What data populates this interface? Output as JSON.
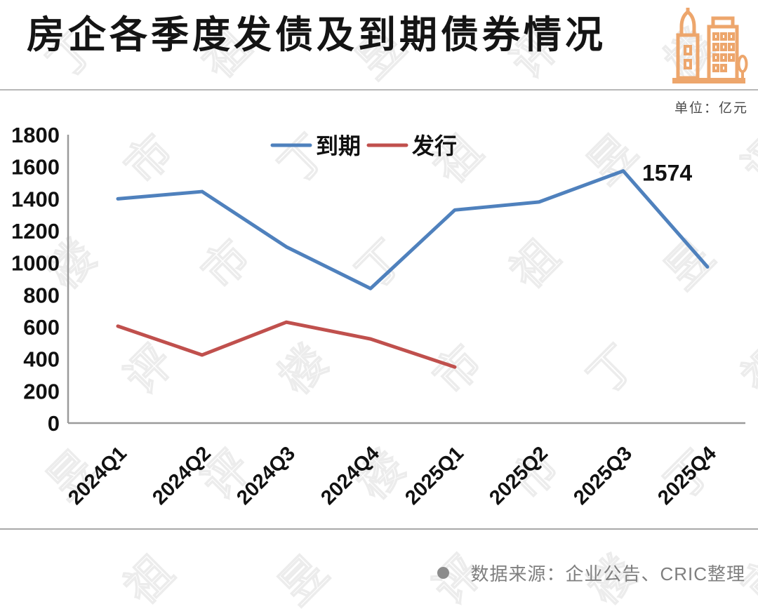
{
  "header": {
    "title": "房企各季度发债及到期债券情况",
    "icon": "buildings-icon"
  },
  "unit_label": "单位：亿元",
  "watermark": {
    "text": "丁祖昱评楼市"
  },
  "source": {
    "text": "数据来源：企业公告、CRIC整理"
  },
  "colors": {
    "maturity_line": "#4F81BD",
    "issuance_line": "#C0504D",
    "axis": "#9b9b9b",
    "label_text": "#111111",
    "title_text": "#141414",
    "unit_text": "#4a4a4a",
    "source_text": "#7f7f7f",
    "icon_orange": "#EDA66C",
    "watermark_stroke": "#ececec"
  },
  "chart_data": {
    "type": "line",
    "title": "房企各季度发债及到期债券情况",
    "categories": [
      "2024Q1",
      "2024Q2",
      "2024Q3",
      "2024Q4",
      "2025Q1",
      "2025Q2",
      "2025Q3",
      "2025Q4"
    ],
    "series": [
      {
        "name": "到期",
        "color": "#4F81BD",
        "values": [
          1400,
          1445,
          1100,
          840,
          1330,
          1380,
          1574,
          975
        ]
      },
      {
        "name": "发行",
        "color": "#C0504D",
        "values": [
          605,
          425,
          630,
          525,
          350,
          null,
          null,
          null
        ]
      }
    ],
    "ylabel": "亿元",
    "ylim": [
      0,
      1800
    ],
    "ytick_step": 200,
    "grid": false,
    "legend_position": "top-center",
    "annotation": {
      "text": "1574",
      "series_index": 0,
      "point_index": 6
    }
  }
}
